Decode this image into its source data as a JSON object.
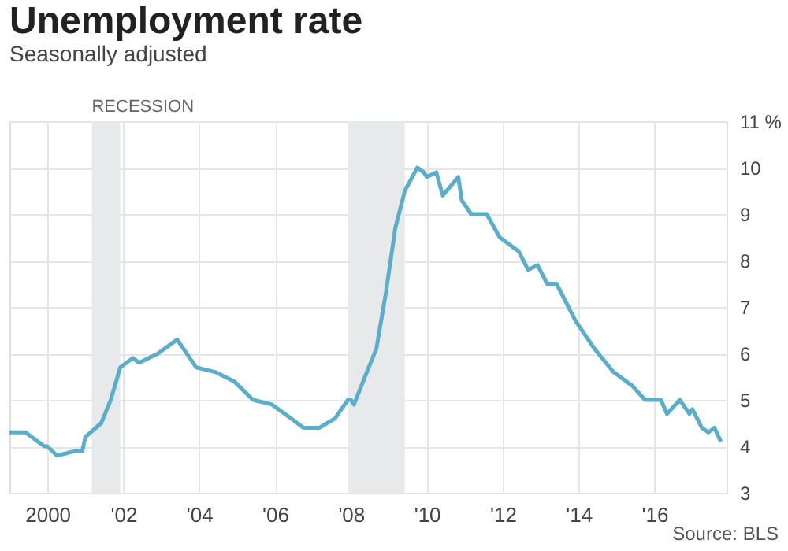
{
  "chart_data": {
    "type": "line",
    "title": "Unemployment rate",
    "subtitle": "Seasonally adjusted",
    "annotations": [
      "Source: BLS"
    ],
    "x": [
      1999.0,
      1999.42,
      1999.92,
      2000.0,
      2000.25,
      2000.75,
      2000.92,
      2001.0,
      2001.42,
      2001.67,
      2001.92,
      2002.25,
      2002.42,
      2002.92,
      2003.42,
      2003.92,
      2004.42,
      2004.92,
      2005.42,
      2005.92,
      2006.42,
      2006.75,
      2006.92,
      2007.17,
      2007.58,
      2007.92,
      2008.0,
      2008.08,
      2008.42,
      2008.67,
      2008.92,
      2009.17,
      2009.42,
      2009.75,
      2009.92,
      2010.0,
      2010.25,
      2010.42,
      2010.83,
      2010.92,
      2011.17,
      2011.58,
      2011.92,
      2012.42,
      2012.67,
      2012.92,
      2013.17,
      2013.42,
      2013.92,
      2014.42,
      2014.92,
      2015.42,
      2015.75,
      2015.92,
      2016.17,
      2016.33,
      2016.67,
      2016.92,
      2017.0,
      2017.25,
      2017.42,
      2017.58,
      2017.75
    ],
    "series": [
      {
        "color": "#5aaecb",
        "values": [
          4.3,
          4.3,
          4.0,
          4.0,
          3.8,
          3.9,
          3.9,
          4.2,
          4.5,
          5.0,
          5.7,
          5.9,
          5.8,
          6.0,
          6.3,
          5.7,
          5.6,
          5.4,
          5.0,
          4.9,
          4.6,
          4.4,
          4.4,
          4.4,
          4.6,
          5.0,
          5.0,
          4.9,
          5.6,
          6.1,
          7.3,
          8.7,
          9.5,
          10.0,
          9.9,
          9.8,
          9.9,
          9.4,
          9.8,
          9.3,
          9.0,
          9.0,
          8.5,
          8.2,
          7.8,
          7.9,
          7.5,
          7.5,
          6.7,
          6.1,
          5.6,
          5.3,
          5.0,
          5.0,
          5.0,
          4.7,
          5.0,
          4.7,
          4.8,
          4.4,
          4.3,
          4.4,
          4.1
        ]
      }
    ],
    "xlim": [
      1999,
      2017.9
    ],
    "xticks": [
      {
        "value": 2000,
        "label": "2000"
      },
      {
        "value": 2002,
        "label": "'02"
      },
      {
        "value": 2004,
        "label": "'04"
      },
      {
        "value": 2006,
        "label": "'06"
      },
      {
        "value": 2008,
        "label": "'08"
      },
      {
        "value": 2010,
        "label": "'10"
      },
      {
        "value": 2012,
        "label": "'12"
      },
      {
        "value": 2014,
        "label": "'14"
      },
      {
        "value": 2016,
        "label": "'16"
      }
    ],
    "ylim": [
      3,
      11
    ],
    "yticks": [
      3,
      4,
      5,
      6,
      7,
      8,
      9,
      10,
      {
        "value": 11,
        "label": "11 %"
      }
    ],
    "grid": true,
    "bands": [
      {
        "axis": "x",
        "from": 2001.17,
        "to": 2001.92,
        "label": "RECESSION",
        "color": "#e8e9eb"
      },
      {
        "axis": "x",
        "from": 2007.92,
        "to": 2009.42,
        "color": "#e8e9eb"
      }
    ]
  }
}
